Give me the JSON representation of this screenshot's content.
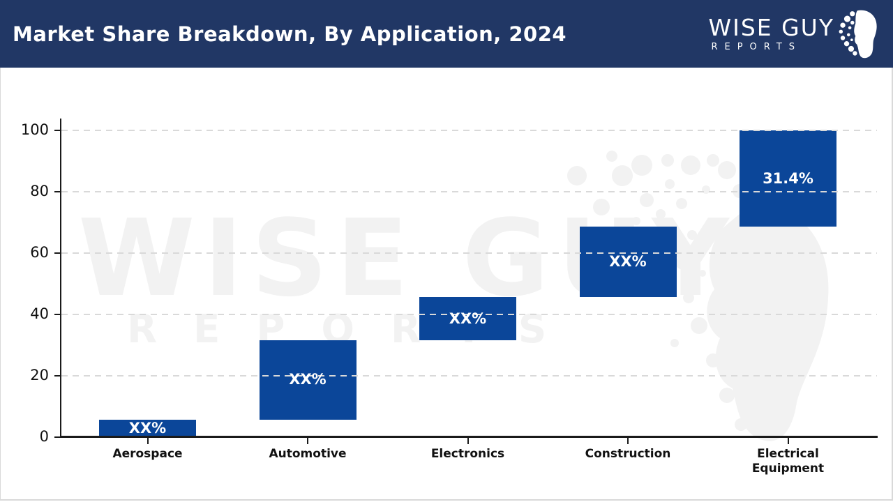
{
  "header": {
    "title": "Market Share Breakdown, By Application, 2024",
    "bg_color": "#213765",
    "logo": {
      "line1": "WISE GUY",
      "line2": "REPORTS",
      "face_icon": "face-profile-dots"
    }
  },
  "watermark": {
    "line1": "WISE GUY",
    "line2": "REPORTS",
    "face_icon": "face-profile-dots"
  },
  "chart_data": {
    "type": "bar",
    "variant": "floating-waterfall",
    "title": "Market Share Breakdown, By Application, 2024",
    "categories": [
      "Aerospace",
      "Automotive",
      "Electronics",
      "Construction",
      "Electrical Equipment"
    ],
    "segments": [
      {
        "category": "Aerospace",
        "start": 0,
        "end": 5.7,
        "value": 5.7,
        "label": "XX%"
      },
      {
        "category": "Automotive",
        "start": 5.7,
        "end": 31.6,
        "value": 25.9,
        "label": "XX%"
      },
      {
        "category": "Electronics",
        "start": 31.6,
        "end": 45.7,
        "value": 14.1,
        "label": "XX%"
      },
      {
        "category": "Construction",
        "start": 45.7,
        "end": 68.6,
        "value": 22.9,
        "label": "XX%"
      },
      {
        "category": "Electrical Equipment",
        "start": 68.6,
        "end": 100,
        "value": 31.4,
        "label": "31.4%"
      }
    ],
    "xlabel": "",
    "ylabel": "",
    "ylim": [
      0,
      100
    ],
    "yticks": [
      0,
      20,
      40,
      60,
      80,
      100
    ],
    "grid": "horizontal-dashed",
    "legend": "none",
    "bar_color": "#0b4699",
    "bar_label_color": "#ffffff",
    "grid_color": "#d9d9d9",
    "axis_color": "#1a1a1a"
  }
}
